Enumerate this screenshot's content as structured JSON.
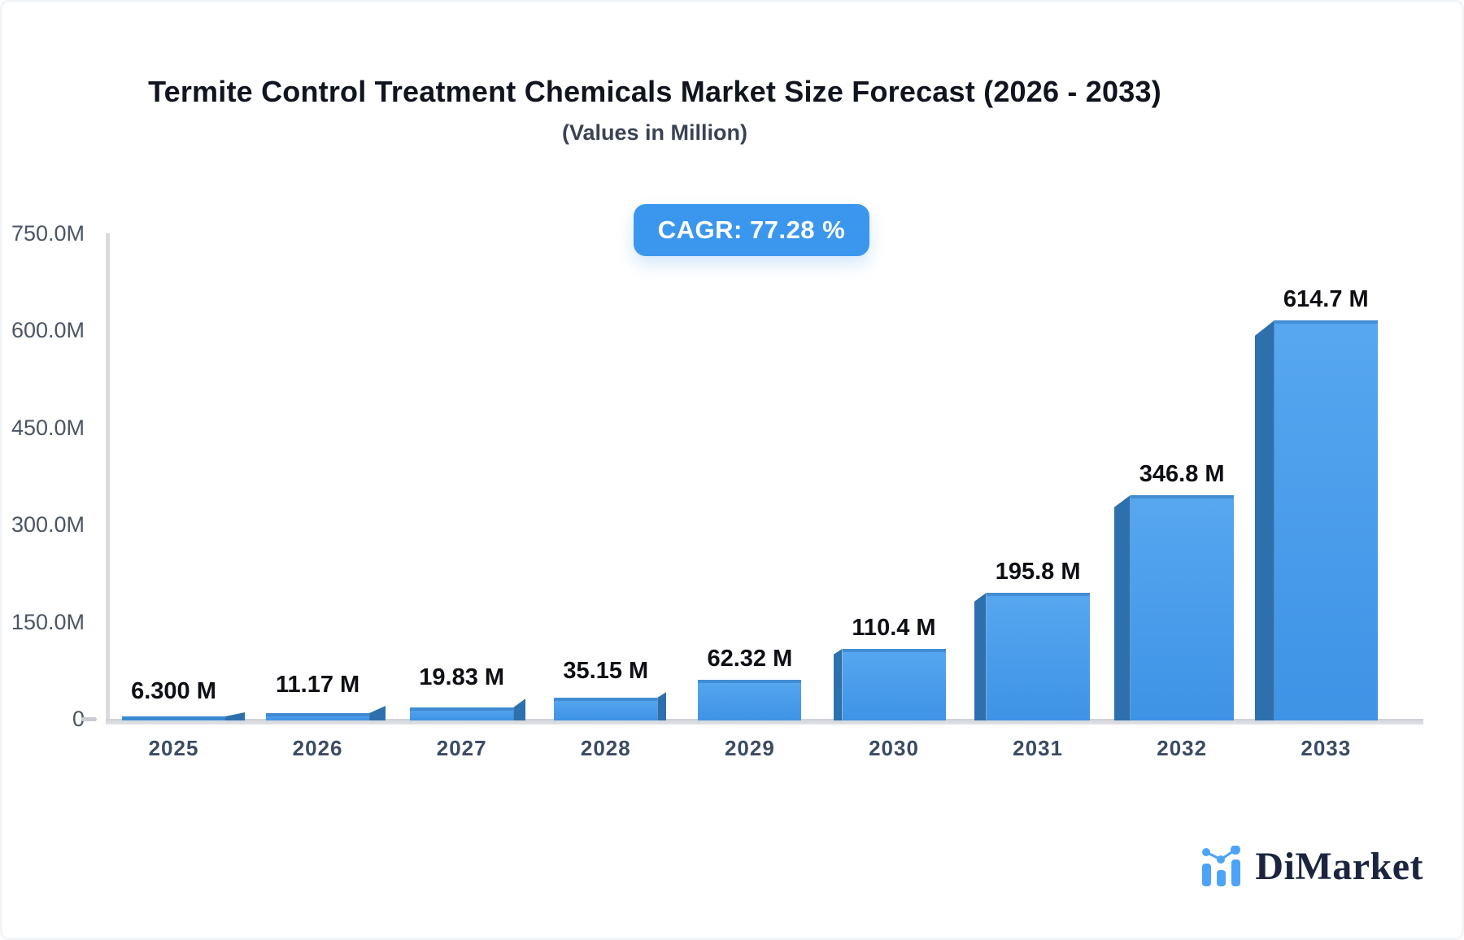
{
  "page": {
    "title": "Termite Control Treatment Chemicals Market Size Forecast (2026 - 2033)",
    "subtitle": "(Values in Million)"
  },
  "cagr_badge": {
    "text": "CAGR: 77.28 %"
  },
  "chart_data": {
    "type": "bar",
    "title": "Termite Control Treatment Chemicals Market Size Forecast (2026 - 2033)",
    "subtitle": "(Values in Million)",
    "categories": [
      "2025",
      "2026",
      "2027",
      "2028",
      "2029",
      "2030",
      "2031",
      "2032",
      "2033"
    ],
    "values": [
      6.3,
      11.17,
      19.83,
      35.15,
      62.32,
      110.4,
      195.8,
      346.8,
      614.7
    ],
    "value_labels": [
      "6.300 M",
      "11.17 M",
      "19.83 M",
      "35.15 M",
      "62.32 M",
      "110.4 M",
      "195.8 M",
      "346.8 M",
      "614.7 M"
    ],
    "unit": "Million",
    "ylim": [
      0,
      750
    ],
    "y_tick_values": [
      750,
      600,
      450,
      300,
      150,
      0
    ],
    "y_tick_labels": [
      "750.0M",
      "600.0M",
      "450.0M",
      "300.0M",
      "150.0M",
      "0"
    ],
    "legend": "none",
    "grid": "off",
    "cagr_percent": "77.28 %"
  },
  "logo": {
    "text": "DiMarket"
  },
  "colors": {
    "badge_blue": "#3b97ee",
    "bar_face_top": "#57a7f0",
    "bar_face_bottom": "#3e93e6",
    "bar_side": "#2d70ad",
    "axis_gray": "#d9dbe0",
    "tick_text": "#4b5563",
    "year_text": "#3c4b63",
    "logo_blue": "#4da3f7",
    "logo_navy": "#1b2540"
  }
}
